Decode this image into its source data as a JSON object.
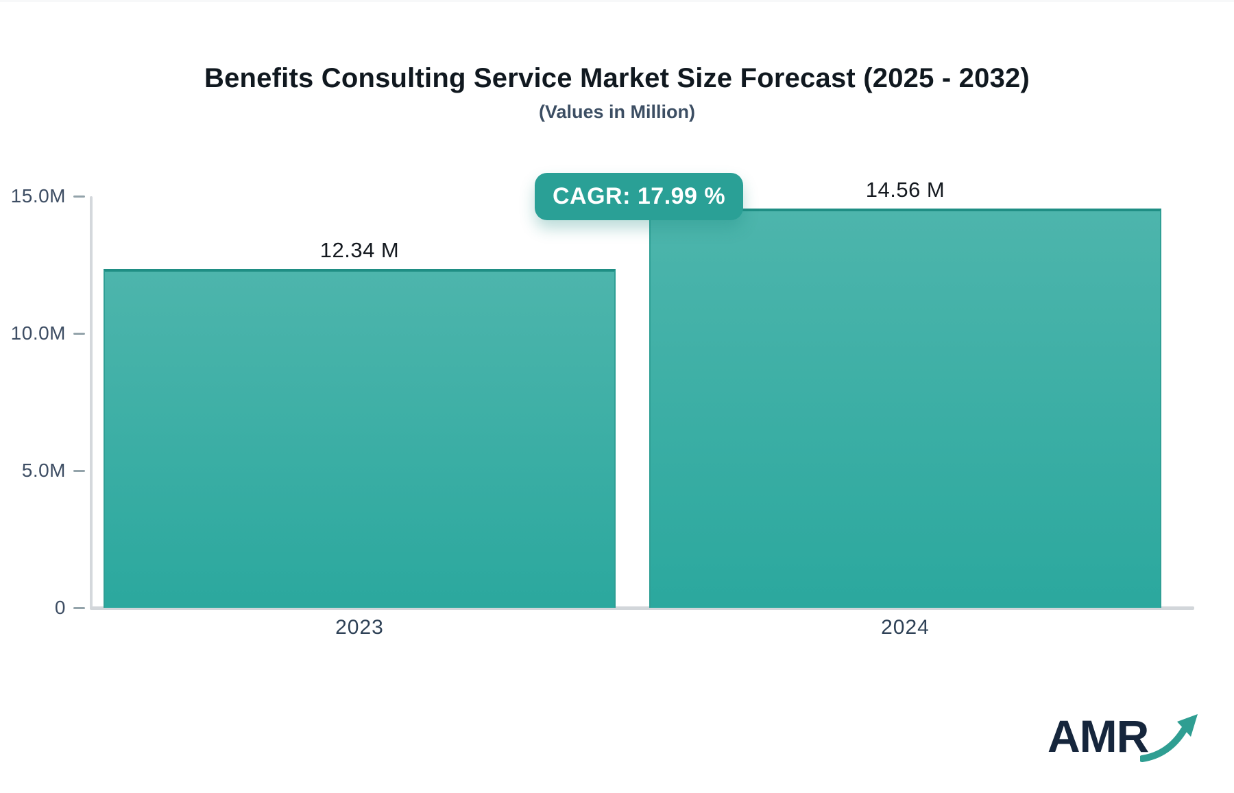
{
  "header": {
    "title": "Benefits Consulting Service Market Size Forecast (2025 - 2032)",
    "subtitle": "(Values in Million)"
  },
  "cagr_badge": {
    "label": "CAGR: 17.99 %",
    "color": "#2aa096"
  },
  "chart_data": {
    "type": "bar",
    "title": "Benefits Consulting Service Market Size Forecast (2025 - 2032)",
    "subtitle": "(Values in Million)",
    "categories": [
      "2023",
      "2024"
    ],
    "values": [
      12.34,
      14.56
    ],
    "value_labels": [
      "12.34 M",
      "14.56 M"
    ],
    "unit": "Million",
    "xlabel": "",
    "ylabel": "",
    "ylim": [
      0,
      15
    ],
    "yticks": [
      {
        "value": 15,
        "label": "15.0M"
      },
      {
        "value": 10,
        "label": "10.0M"
      },
      {
        "value": 5,
        "label": "5.0M"
      },
      {
        "value": 0,
        "label": "0"
      }
    ],
    "grid": false,
    "legend": "none",
    "bar_color_top": "#4db5ac",
    "bar_color_bottom": "#2ba89e",
    "bar_border_color": "#1f8e84",
    "axis_color": "#d2d6da"
  },
  "logo": {
    "text": "AMR",
    "arrow_color": "#2f9e92"
  }
}
